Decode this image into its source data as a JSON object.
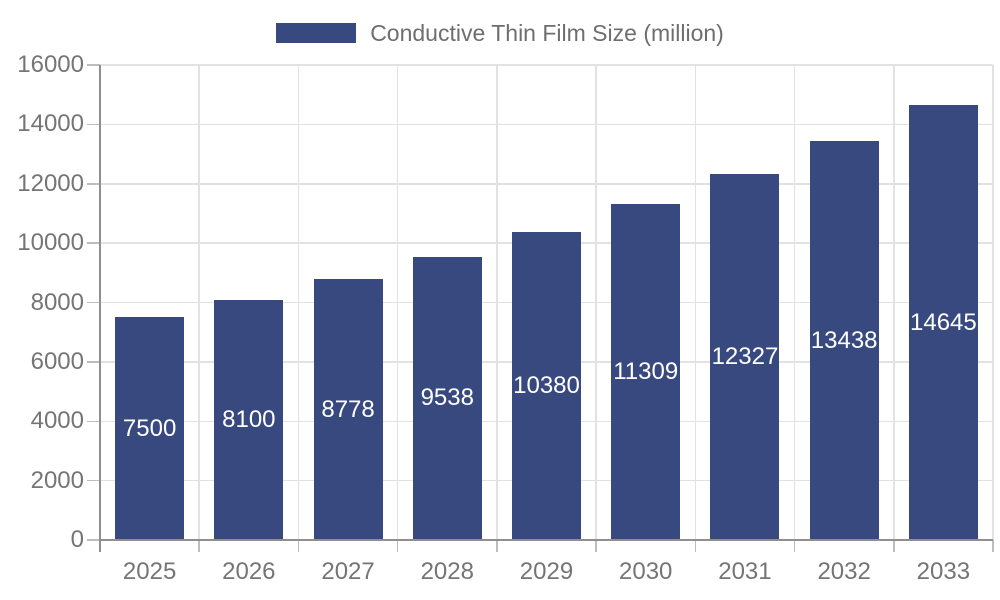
{
  "legend": {
    "label": "Conductive Thin Film Size (million)"
  },
  "colors": {
    "bar": "#37497E",
    "axis_line": "#8f8f8f",
    "grid_line": "#e2e2e2",
    "tick_mark": "#bdbdbd",
    "tick_label": "#757575",
    "value_label": "#ffffff",
    "legend_text": "#6e6e6e",
    "background": "#ffffff"
  },
  "chart_data": {
    "type": "bar",
    "title": "Conductive Thin Film Size (million)",
    "series_name": "Conductive Thin Film Size (million)",
    "categories": [
      "2025",
      "2026",
      "2027",
      "2028",
      "2029",
      "2030",
      "2031",
      "2032",
      "2033"
    ],
    "values": [
      7500,
      8100,
      8778,
      9538,
      10380,
      11309,
      12327,
      13438,
      14645
    ],
    "xlabel": "",
    "ylabel": "",
    "ylim": [
      0,
      16000
    ],
    "y_ticks": [
      0,
      2000,
      4000,
      6000,
      8000,
      10000,
      12000,
      14000,
      16000
    ],
    "grid": true,
    "legend_position": "top",
    "value_label_position": "inside-center"
  }
}
